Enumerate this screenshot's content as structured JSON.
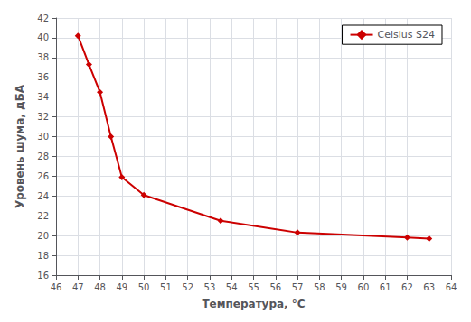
{
  "chart_data": {
    "type": "line",
    "x": [
      47,
      47.5,
      48,
      48.5,
      49,
      50,
      53.5,
      57,
      62,
      63
    ],
    "series": [
      {
        "name": "Celsius S24",
        "color": "#cc0000",
        "marker": "diamond",
        "values": [
          40.2,
          37.3,
          34.5,
          30.0,
          25.9,
          24.1,
          21.5,
          20.3,
          19.8,
          19.7
        ]
      }
    ],
    "xlabel": "Температура, °C",
    "ylabel": "Уровень шума, дБА",
    "xlim": [
      46,
      64
    ],
    "ylim": [
      16,
      42
    ],
    "xticks": [
      46,
      47,
      48,
      49,
      50,
      51,
      52,
      53,
      54,
      55,
      56,
      57,
      58,
      59,
      60,
      61,
      62,
      63,
      64
    ],
    "yticks": [
      16,
      18,
      20,
      22,
      24,
      26,
      28,
      30,
      32,
      34,
      36,
      38,
      40,
      42
    ],
    "grid": true,
    "legend": "upper right"
  }
}
